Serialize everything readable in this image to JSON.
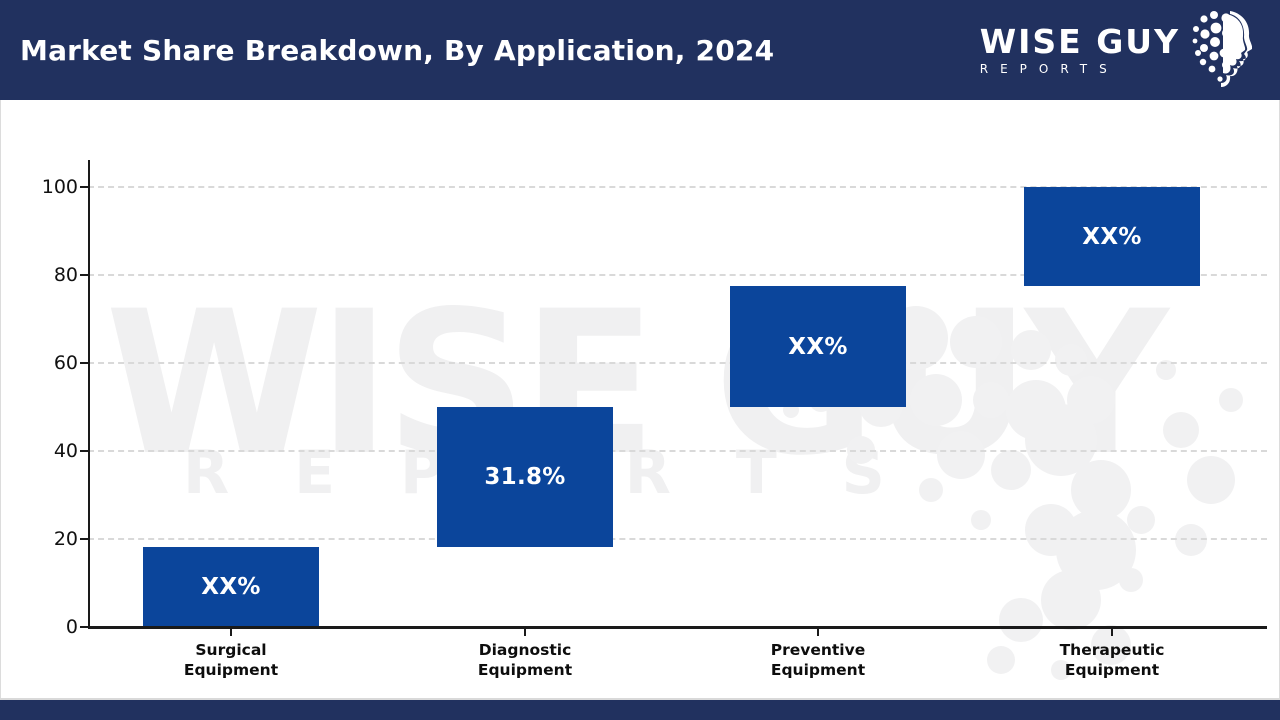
{
  "header": {
    "title": "Market Share Breakdown, By Application, 2024",
    "logo": {
      "line1": "WISE GUY",
      "line2": "REPORTS"
    }
  },
  "watermark": {
    "line1": "WISE GUY",
    "line2": "R E P O R T S"
  },
  "footer": {
    "text": ""
  },
  "chart_data": {
    "type": "bar",
    "subtype": "waterfall-floating-bars",
    "title": "Market Share Breakdown, By Application, 2024",
    "categories": [
      "Surgical Equipment",
      "Diagnostic Equipment",
      "Preventive Equipment",
      "Therapeutic Equipment"
    ],
    "segments": [
      {
        "category": "Surgical Equipment",
        "start": 0,
        "end": 18.2,
        "value_label": "XX%"
      },
      {
        "category": "Diagnostic Equipment",
        "start": 18.2,
        "end": 50.0,
        "value": 31.8,
        "value_label": "31.8%"
      },
      {
        "category": "Preventive Equipment",
        "start": 50.0,
        "end": 77.5,
        "value_label": "XX%"
      },
      {
        "category": "Therapeutic Equipment",
        "start": 77.5,
        "end": 100.0,
        "value_label": "XX%"
      }
    ],
    "ylim": [
      0,
      100
    ],
    "yticks": [
      0,
      20,
      40,
      60,
      80,
      100
    ],
    "xlabel": "",
    "ylabel": "",
    "grid": "horizontal-dashed",
    "legend": "none",
    "bar_color": "#0b459b",
    "bar_label_color": "#ffffff"
  },
  "colors": {
    "header_bg": "#21315f",
    "footer_bg": "#21315f",
    "bar": "#0b459b",
    "gridline": "#d9d9d9",
    "axis": "#1a1a1a",
    "watermark": "#f0f0f1"
  }
}
